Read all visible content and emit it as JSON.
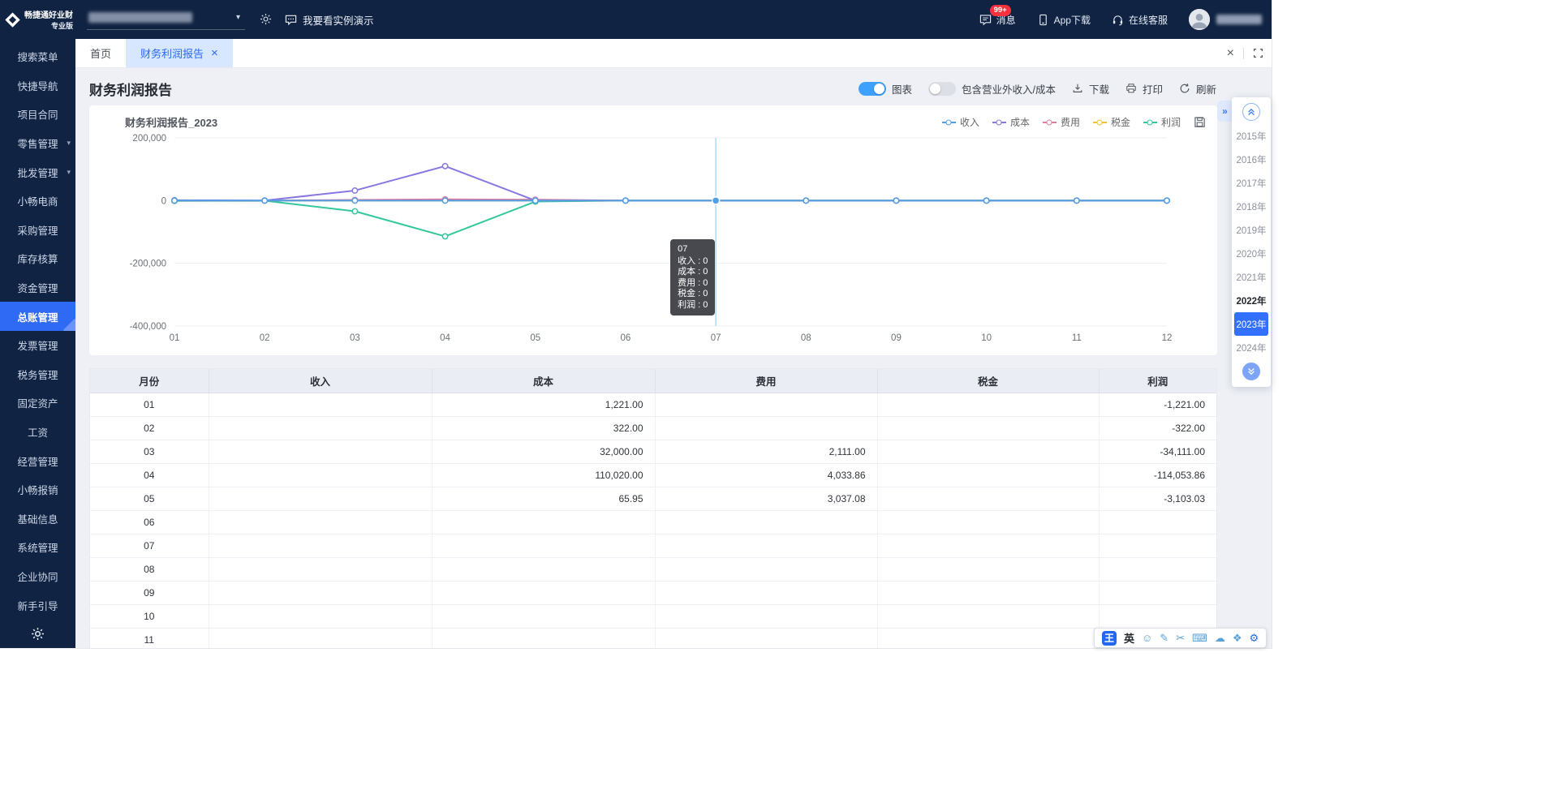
{
  "brand": {
    "logo_title": "畅捷通好业财",
    "logo_subtitle": "专业版"
  },
  "topbar": {
    "demo_link": "我要看实例演示",
    "messages": {
      "label": "消息",
      "badge": "99+"
    },
    "app_download": "App下载",
    "online_support": "在线客服"
  },
  "sidebar": {
    "items": [
      {
        "label": "搜索菜单"
      },
      {
        "label": "快捷导航"
      },
      {
        "label": "项目合同"
      },
      {
        "label": "零售管理",
        "arrow": true
      },
      {
        "label": "批发管理",
        "arrow": true
      },
      {
        "label": "小畅电商"
      },
      {
        "label": "采购管理"
      },
      {
        "label": "库存核算"
      },
      {
        "label": "资金管理"
      },
      {
        "label": "总账管理",
        "active": true
      },
      {
        "label": "发票管理"
      },
      {
        "label": "税务管理"
      },
      {
        "label": "固定资产"
      },
      {
        "label": "工资"
      },
      {
        "label": "经营管理"
      },
      {
        "label": "小畅报销"
      },
      {
        "label": "基础信息"
      },
      {
        "label": "系统管理"
      },
      {
        "label": "企业协同"
      },
      {
        "label": "新手引导"
      }
    ]
  },
  "tabs": [
    {
      "label": "首页",
      "active": false,
      "closable": false
    },
    {
      "label": "财务利润报告",
      "active": true,
      "closable": true
    }
  ],
  "page": {
    "title": "财务利润报告",
    "controls": {
      "chart_toggle_label": "图表",
      "chart_toggle_on": true,
      "nonoperating_toggle_label": "包含营业外收入/成本",
      "nonoperating_toggle_on": false,
      "download_label": "下载",
      "print_label": "打印",
      "refresh_label": "刷新"
    }
  },
  "chart_data": {
    "type": "line",
    "title": "财务利润报告_2023",
    "x": [
      "01",
      "02",
      "03",
      "04",
      "05",
      "06",
      "07",
      "08",
      "09",
      "10",
      "11",
      "12"
    ],
    "ylim": [
      -400000,
      200000
    ],
    "yticks": [
      200000,
      0,
      -200000,
      -400000
    ],
    "grid": true,
    "legend_position": "top-right",
    "highlight_index": 6,
    "series": [
      {
        "name": "收入",
        "color": "#4f9fe6",
        "values": [
          0,
          0,
          0,
          0,
          0,
          0,
          0,
          0,
          0,
          0,
          0,
          0
        ]
      },
      {
        "name": "成本",
        "color": "#8877e0",
        "values": [
          1221,
          322,
          32000,
          110020,
          65.95,
          0,
          0,
          0,
          0,
          0,
          0,
          0
        ]
      },
      {
        "name": "费用",
        "color": "#df7d9c",
        "values": [
          0,
          0,
          2111,
          4033.86,
          3037.08,
          0,
          0,
          0,
          0,
          0,
          0,
          0
        ]
      },
      {
        "name": "税金",
        "color": "#f1c232",
        "values": [
          0,
          0,
          0,
          0,
          0,
          0,
          0,
          0,
          0,
          0,
          0,
          0
        ]
      },
      {
        "name": "利润",
        "color": "#34c79f",
        "values": [
          -1221,
          -322,
          -34111,
          -114053.86,
          -3103.03,
          0,
          0,
          0,
          0,
          0,
          0,
          0
        ]
      }
    ],
    "tooltip": {
      "title": "07",
      "rows": [
        {
          "label": "收入",
          "value": "0"
        },
        {
          "label": "成本",
          "value": "0"
        },
        {
          "label": "费用",
          "value": "0"
        },
        {
          "label": "税金",
          "value": "0"
        },
        {
          "label": "利润",
          "value": "0"
        }
      ]
    }
  },
  "table": {
    "columns": [
      "月份",
      "收入",
      "成本",
      "费用",
      "税金",
      "利润"
    ],
    "rows": [
      [
        "01",
        "",
        "1,221.00",
        "",
        "",
        "-1,221.00"
      ],
      [
        "02",
        "",
        "322.00",
        "",
        "",
        "-322.00"
      ],
      [
        "03",
        "",
        "32,000.00",
        "2,111.00",
        "",
        "-34,111.00"
      ],
      [
        "04",
        "",
        "110,020.00",
        "4,033.86",
        "",
        "-114,053.86"
      ],
      [
        "05",
        "",
        "65.95",
        "3,037.08",
        "",
        "-3,103.03"
      ],
      [
        "06",
        "",
        "",
        "",
        "",
        ""
      ],
      [
        "07",
        "",
        "",
        "",
        "",
        ""
      ],
      [
        "08",
        "",
        "",
        "",
        "",
        ""
      ],
      [
        "09",
        "",
        "",
        "",
        "",
        ""
      ],
      [
        "10",
        "",
        "",
        "",
        "",
        ""
      ],
      [
        "11",
        "",
        "",
        "",
        "",
        ""
      ]
    ]
  },
  "year_panel": {
    "years": [
      "2015年",
      "2016年",
      "2017年",
      "2018年",
      "2019年",
      "2020年",
      "2021年",
      "2022年",
      "2023年",
      "2024年"
    ],
    "selected": "2023年",
    "emphasized": "2022年"
  },
  "ime": {
    "logo": "王",
    "lang": "英",
    "icons": [
      "emoji-icon",
      "handwriting-icon",
      "screenshot-icon",
      "keyboard-icon",
      "cloud-icon",
      "skin-icon",
      "toolbox-icon"
    ]
  }
}
